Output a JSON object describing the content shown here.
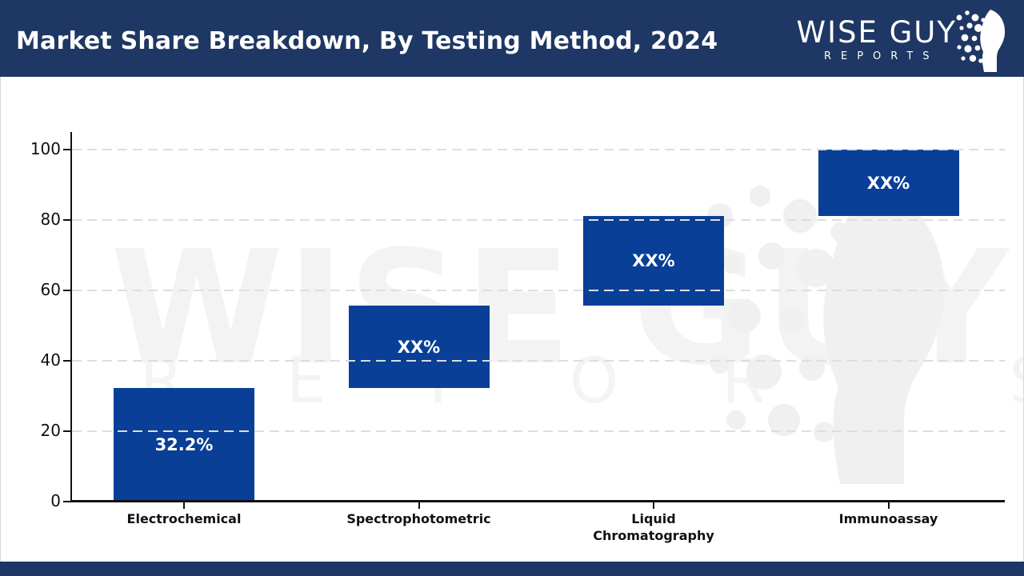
{
  "header": {
    "title": "Market Share Breakdown, By Testing Method, 2024",
    "bg_color": "#1e3764"
  },
  "logo": {
    "line1": "WISE GUY",
    "line2": "REPORTS"
  },
  "watermark": {
    "line1": "WISE GUY",
    "line2": "R E P O R T S"
  },
  "chart_data": {
    "type": "bar",
    "subtype": "waterfall",
    "title": "Market Share Breakdown, By Testing Method, 2024",
    "categories": [
      "Electrochemical",
      "Spectrophotometric",
      "Liquid Chromatography",
      "Immunoassay"
    ],
    "segments": [
      {
        "category": "Electrochemical",
        "start": 0,
        "end": 32.2,
        "label": "32.2%"
      },
      {
        "category": "Spectrophotometric",
        "start": 32.2,
        "end": 55.6,
        "label": "XX%"
      },
      {
        "category": "Liquid Chromatography",
        "start": 55.6,
        "end": 81.1,
        "label": "XX%"
      },
      {
        "category": "Immunoassay",
        "start": 81.1,
        "end": 100,
        "label": "XX%"
      }
    ],
    "yticks": [
      0,
      20,
      40,
      60,
      80,
      100
    ],
    "ylim": [
      0,
      105
    ],
    "xlabel": "",
    "ylabel": "",
    "grid": "dashed-horizontal",
    "legend": null,
    "bar_color": "#0a3f98",
    "bar_label_color": "#ffffff",
    "axis_color": "#111111"
  },
  "footer": {
    "bg_color": "#1e3764"
  }
}
